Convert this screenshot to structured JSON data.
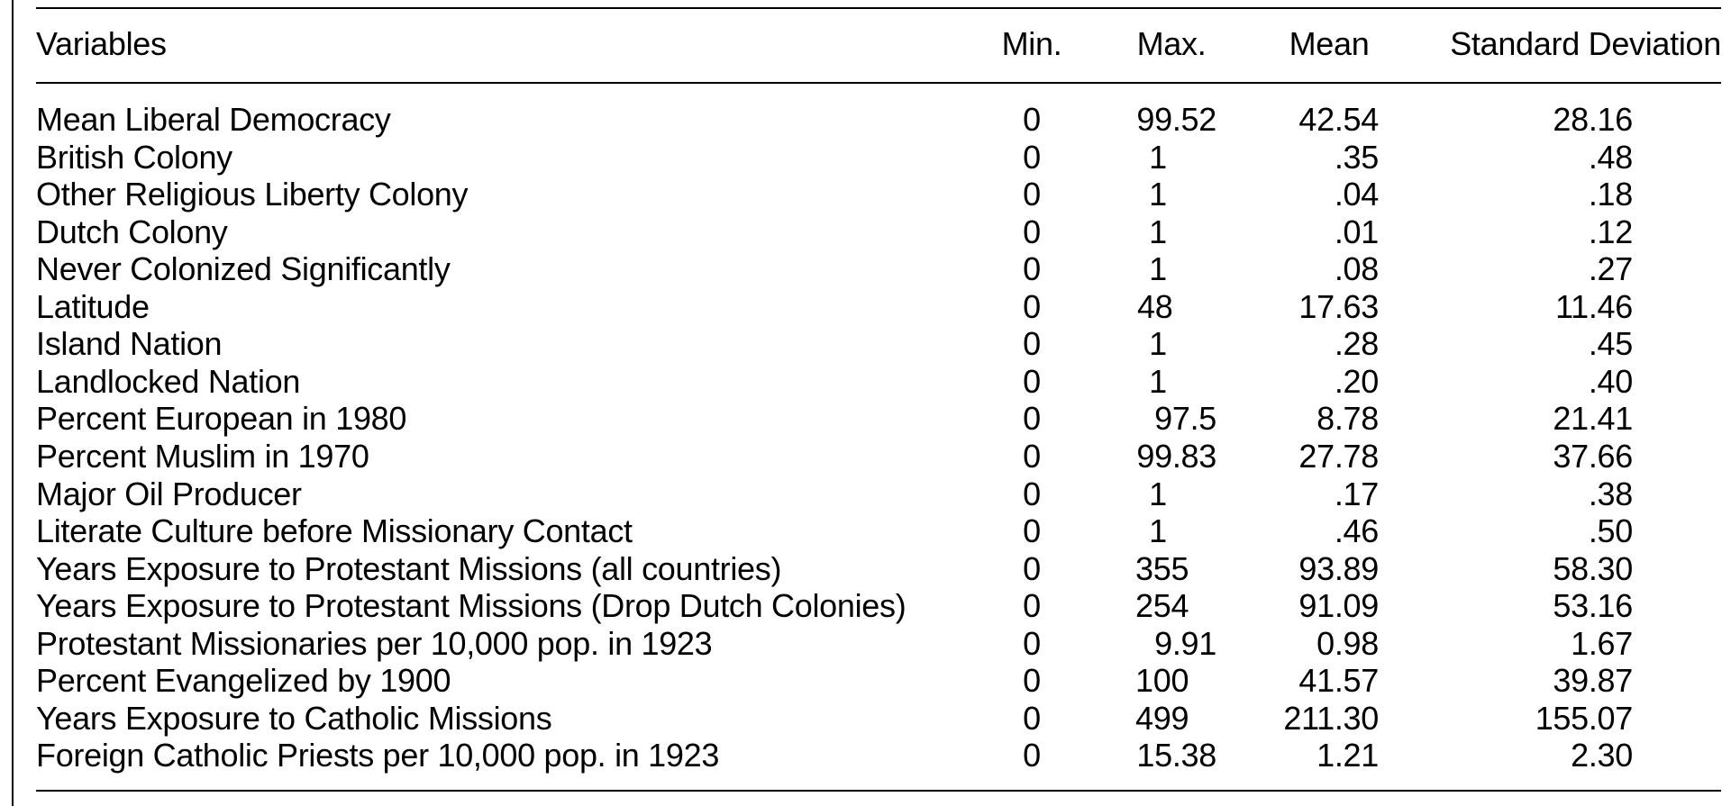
{
  "table": {
    "headers": {
      "variables": "Variables",
      "min": "Min.",
      "max": "Max.",
      "mean": "Mean",
      "sd": "Standard Deviation"
    },
    "rows": [
      {
        "variable": "Mean Liberal Democracy",
        "min": "0",
        "max": "99.52",
        "mean": "42.54",
        "sd": "28.16"
      },
      {
        "variable": "British Colony",
        "min": "0",
        "max": "1",
        "mean": ".35",
        "sd": ".48"
      },
      {
        "variable": "Other Religious Liberty Colony",
        "min": "0",
        "max": "1",
        "mean": ".04",
        "sd": ".18"
      },
      {
        "variable": "Dutch Colony",
        "min": "0",
        "max": "1",
        "mean": ".01",
        "sd": ".12"
      },
      {
        "variable": "Never Colonized Significantly",
        "min": "0",
        "max": "1",
        "mean": ".08",
        "sd": ".27"
      },
      {
        "variable": "Latitude",
        "min": "0",
        "max": "48",
        "mean": "17.63",
        "sd": "11.46"
      },
      {
        "variable": "Island Nation",
        "min": "0",
        "max": "1",
        "mean": ".28",
        "sd": ".45"
      },
      {
        "variable": "Landlocked Nation",
        "min": "0",
        "max": "1",
        "mean": ".20",
        "sd": ".40"
      },
      {
        "variable": "Percent European in 1980",
        "min": "0",
        "max": "97.5",
        "mean": "8.78",
        "sd": "21.41"
      },
      {
        "variable": "Percent Muslim in 1970",
        "min": "0",
        "max": "99.83",
        "mean": "27.78",
        "sd": "37.66"
      },
      {
        "variable": "Major Oil Producer",
        "min": "0",
        "max": "1",
        "mean": ".17",
        "sd": ".38"
      },
      {
        "variable": "Literate Culture before Missionary Contact",
        "min": "0",
        "max": "1",
        "mean": ".46",
        "sd": ".50"
      },
      {
        "variable": "Years Exposure to Protestant Missions (all countries)",
        "min": "0",
        "max": "355",
        "mean": "93.89",
        "sd": "58.30"
      },
      {
        "variable": "Years Exposure to Protestant Missions (Drop Dutch Colonies)",
        "min": "0",
        "max": "254",
        "mean": "91.09",
        "sd": "53.16"
      },
      {
        "variable": "Protestant Missionaries per 10,000 pop. in 1923",
        "min": "0",
        "max": "9.91",
        "mean": "0.98",
        "sd": "1.67"
      },
      {
        "variable": "Percent Evangelized by 1900",
        "min": "0",
        "max": "100",
        "mean": "41.57",
        "sd": "39.87"
      },
      {
        "variable": "Years Exposure to Catholic Missions",
        "min": "0",
        "max": "499",
        "mean": "211.30",
        "sd": "155.07"
      },
      {
        "variable": "Foreign Catholic Priests per 10,000 pop. in 1923",
        "min": "0",
        "max": "15.38",
        "mean": "1.21",
        "sd": "2.30"
      }
    ]
  }
}
